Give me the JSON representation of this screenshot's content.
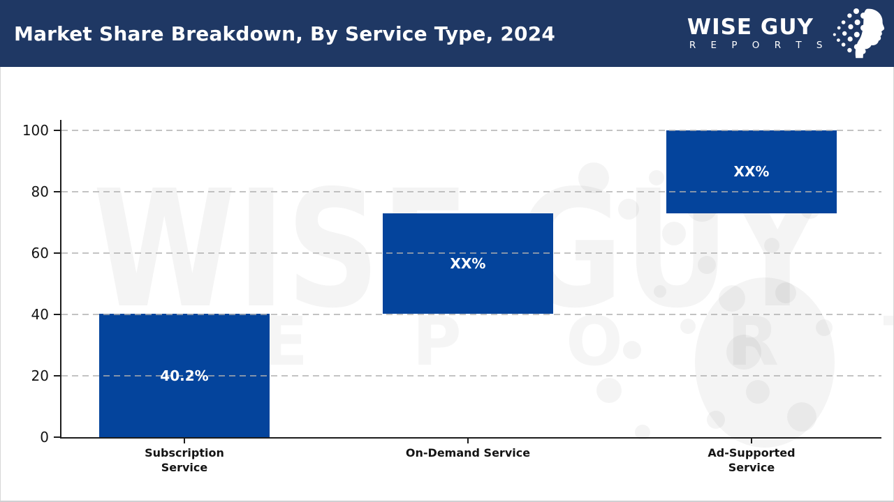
{
  "header": {
    "title": "Market Share Breakdown, By Service Type, 2024",
    "background_color": "#1F3864",
    "logo": {
      "line1": "WISE GUY",
      "line2": "R E P O R T S"
    }
  },
  "watermark": {
    "line1": "WISE GUY",
    "line2": "R E P O R T S"
  },
  "chart_data": {
    "type": "bar",
    "subtype": "waterfall",
    "title": "Market Share Breakdown, By Service Type, 2024",
    "categories": [
      "Subscription Service",
      "On-Demand Service",
      "Ad-Supported Service"
    ],
    "category_label_lines": [
      [
        "Subscription",
        "Service"
      ],
      [
        "On-Demand Service"
      ],
      [
        "Ad-Supported",
        "Service"
      ]
    ],
    "segments": [
      {
        "category": "Subscription Service",
        "start": 0,
        "end": 40.2,
        "label": "40.2%"
      },
      {
        "category": "On-Demand Service",
        "start": 40.2,
        "end": 73,
        "label": "XX%"
      },
      {
        "category": "Ad-Supported Service",
        "start": 73,
        "end": 100,
        "label": "XX%"
      }
    ],
    "ylim": [
      0,
      100
    ],
    "yticks": [
      0,
      20,
      40,
      60,
      80,
      100
    ],
    "xlabel": "",
    "ylabel": "",
    "grid": {
      "horizontal": true,
      "style": "dashed",
      "drawn_on_top": true
    },
    "legend": null,
    "bar_color": "#04449C",
    "bar_label_color": "#FFFFFF",
    "axis_color": "#1C1C1C"
  }
}
